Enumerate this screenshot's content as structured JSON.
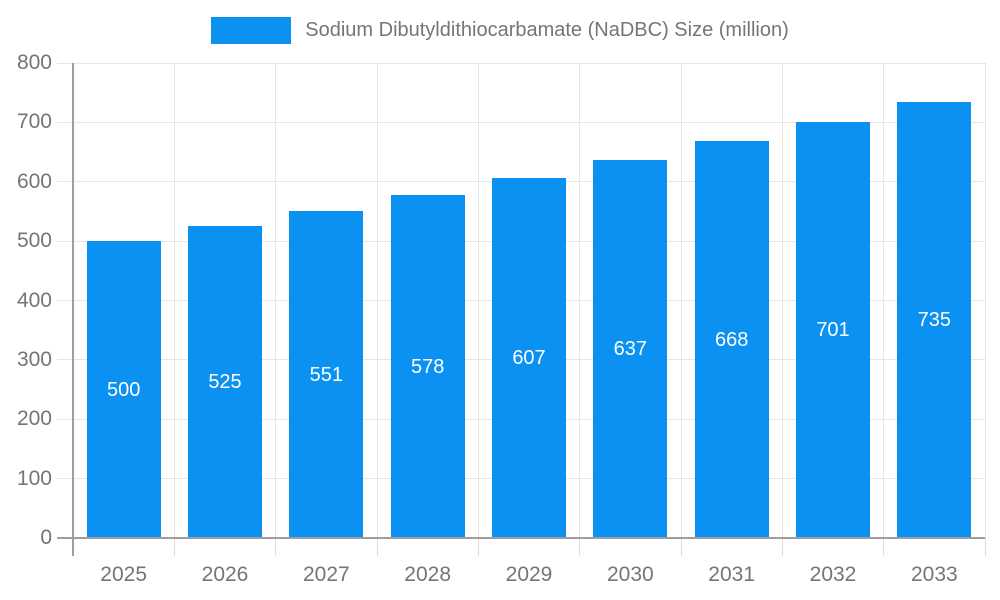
{
  "legend": {
    "label": "Sodium Dibutyldithiocarbamate (NaDBC) Size (million)"
  },
  "chart_data": {
    "type": "bar",
    "title": "Sodium Dibutyldithiocarbamate (NaDBC) Size (million)",
    "categories": [
      "2025",
      "2026",
      "2027",
      "2028",
      "2029",
      "2030",
      "2031",
      "2032",
      "2033"
    ],
    "values": [
      500,
      525,
      551,
      578,
      607,
      637,
      668,
      701,
      735
    ],
    "xlabel": "",
    "ylabel": "",
    "ylim": [
      0,
      800
    ],
    "ytick_step": 100,
    "ytick_labels": [
      "0",
      "100",
      "200",
      "300",
      "400",
      "500",
      "600",
      "700",
      "800"
    ],
    "grid": true,
    "legend_position": "top",
    "value_labels": "centered-in-bar",
    "colors": {
      "bar": "#0a91f2",
      "value_label": "#ffffff",
      "axis": "#9e9e9e",
      "grid": "#e6e6e6",
      "tick": "#dddddd",
      "text": "#757575"
    }
  }
}
